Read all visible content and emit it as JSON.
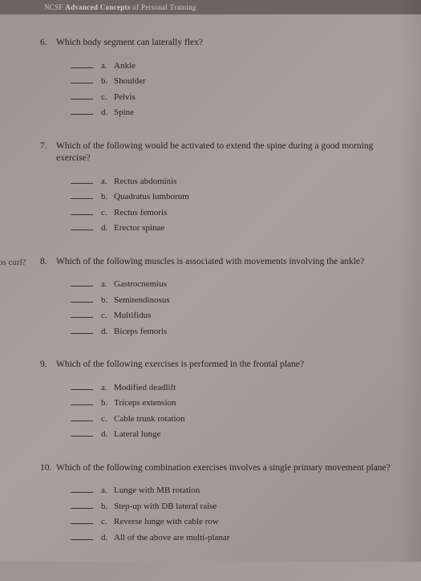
{
  "header": {
    "prefix": "NCSF ",
    "bold": "Advanced Concepts",
    "suffix": " of Personal Training"
  },
  "margin_note": "ps curl?",
  "questions": [
    {
      "num": "6.",
      "text": "Which body segment can laterally flex?",
      "options": [
        {
          "letter": "a.",
          "text": "Ankle"
        },
        {
          "letter": "b.",
          "text": "Shoulder"
        },
        {
          "letter": "c.",
          "text": "Pelvis"
        },
        {
          "letter": "d.",
          "text": "Spine"
        }
      ]
    },
    {
      "num": "7.",
      "text": "Which of the following would be activated to extend the spine during a good morning exercise?",
      "options": [
        {
          "letter": "a.",
          "text": "Rectus abdominis"
        },
        {
          "letter": "b.",
          "text": "Quadratus lumborum"
        },
        {
          "letter": "c.",
          "text": "Rectus femoris"
        },
        {
          "letter": "d.",
          "text": "Erector spinae"
        }
      ]
    },
    {
      "num": "8.",
      "text": "Which of the following muscles is associated with movements involving the ankle?",
      "options": [
        {
          "letter": "a.",
          "text": "Gastrocnemius"
        },
        {
          "letter": "b.",
          "text": "Semitendinosus"
        },
        {
          "letter": "c.",
          "text": "Multifidus"
        },
        {
          "letter": "d.",
          "text": "Biceps femoris"
        }
      ]
    },
    {
      "num": "9.",
      "text": "Which of the following exercises is performed in the frontal plane?",
      "options": [
        {
          "letter": "a.",
          "text": "Modified deadlift"
        },
        {
          "letter": "b.",
          "text": "Triceps extension"
        },
        {
          "letter": "c.",
          "text": "Cable trunk rotation"
        },
        {
          "letter": "d.",
          "text": "Lateral lunge"
        }
      ]
    },
    {
      "num": "10.",
      "text": "Which of the following combination exercises involves a single primary movement plane?",
      "options": [
        {
          "letter": "a.",
          "text": "Lunge with MB rotation"
        },
        {
          "letter": "b.",
          "text": "Step-up with DB lateral raise"
        },
        {
          "letter": "c.",
          "text": "Reverse lunge with cable row"
        },
        {
          "letter": "d.",
          "text": "All of the above are multi-planar"
        }
      ]
    }
  ]
}
